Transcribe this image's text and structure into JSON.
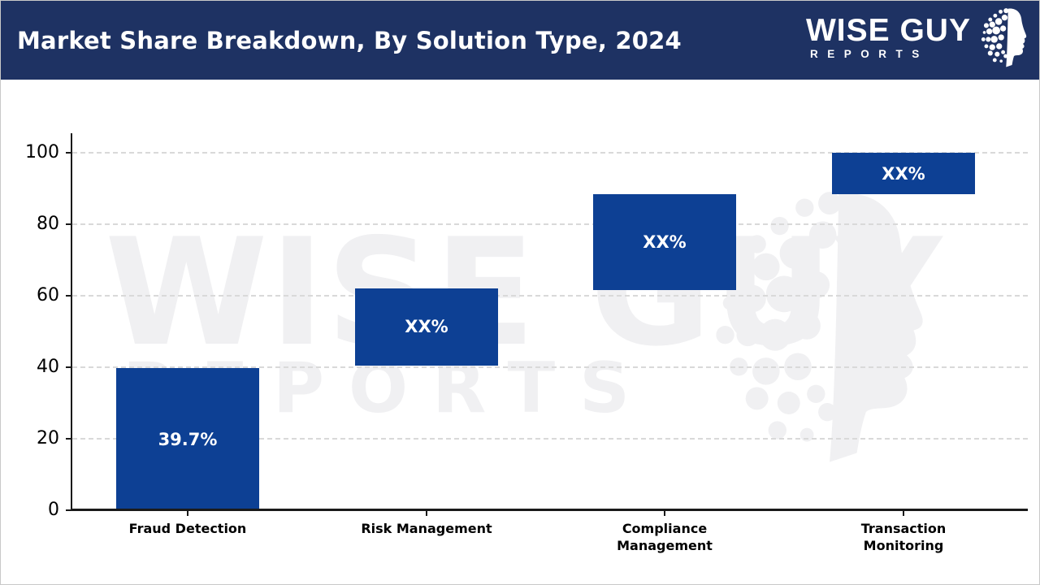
{
  "header": {
    "title": "Market Share Breakdown, By Solution Type, 2024",
    "brand": {
      "line1": "WISE GUY",
      "line2": "REPORTS"
    },
    "bg_color": "#1e3263"
  },
  "watermark": {
    "line1": "WISE GUY",
    "line2": "REPORTS"
  },
  "chart_data": {
    "type": "bar",
    "subtype": "stacked-waterfall",
    "title": "Market Share Breakdown, By Solution Type, 2024",
    "categories": [
      "Fraud Detection",
      "Risk Management",
      "Compliance\nManagement",
      "Transaction\nMonitoring"
    ],
    "series": [
      {
        "name": "Market Share",
        "segments": [
          {
            "category": "Fraud Detection",
            "start": 0,
            "end": 39.7,
            "label": "39.7%"
          },
          {
            "category": "Risk Management",
            "start": 40.5,
            "end": 62.0,
            "label": "XX%"
          },
          {
            "category": "Compliance Management",
            "start": 61.7,
            "end": 88.4,
            "label": "XX%"
          },
          {
            "category": "Transaction Monitoring",
            "start": 88.4,
            "end": 100,
            "label": "XX%"
          }
        ]
      }
    ],
    "ylim": [
      0,
      100
    ],
    "yticks": [
      0,
      20,
      40,
      60,
      80,
      100
    ],
    "bar_color": "#0d4094",
    "grid": true,
    "legend": "none"
  }
}
